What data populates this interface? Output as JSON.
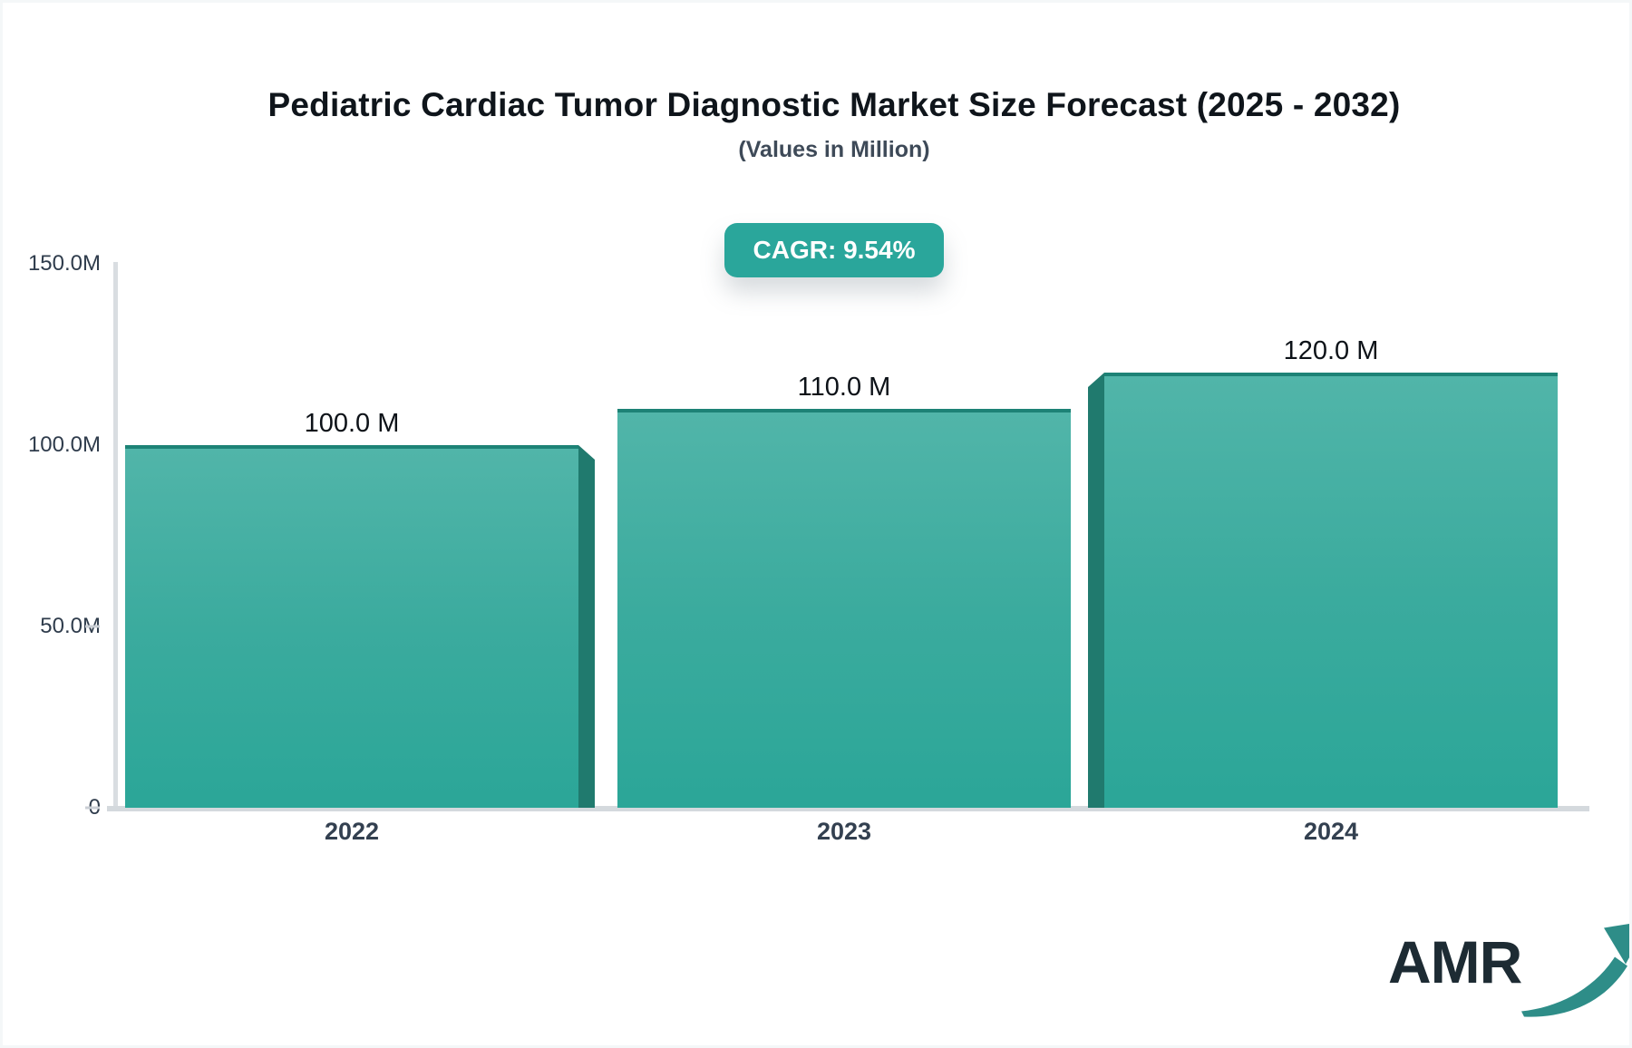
{
  "page": {
    "title": "Pediatric Cardiac Tumor Diagnostic Market Size Forecast (2025 - 2032)",
    "subtitle": "(Values in Million)",
    "badge_label": "CAGR: 9.54%",
    "logo_text": "AMR",
    "colors": {
      "accent_teal": "#2aa69b",
      "bar_face_top": "#51b5a9",
      "bar_face_bottom": "#2ba698",
      "bar_side_dark": "#207a6e",
      "bar_top_edge": "#1d8276",
      "axis_gray": "#d4d9dd",
      "title_text": "#0f151b",
      "axis_label_text": "#2f3c4c",
      "logo_arrow_teal": "#2e8d88"
    }
  },
  "chart_data": {
    "type": "bar",
    "title": "Pediatric Cardiac Tumor Diagnostic Market Size Forecast (2025 - 2032)",
    "subtitle": "(Values in Million)",
    "badge": "CAGR: 9.54%",
    "categories": [
      "2022",
      "2023",
      "2024"
    ],
    "values": [
      100.0,
      110.0,
      120.0
    ],
    "value_labels": [
      "100.0 M",
      "110.0 M",
      "120.0 M"
    ],
    "xlabel": "",
    "ylabel": "",
    "ylim": [
      0,
      150
    ],
    "yticks": [
      0,
      50,
      100,
      150
    ],
    "ytick_labels": [
      "0",
      "50.0M",
      "100.0M",
      "150.0M"
    ],
    "ytick_dashes": [
      0,
      50
    ],
    "grid": false,
    "legend": false,
    "bar_style": "3d-teal-gradient"
  }
}
